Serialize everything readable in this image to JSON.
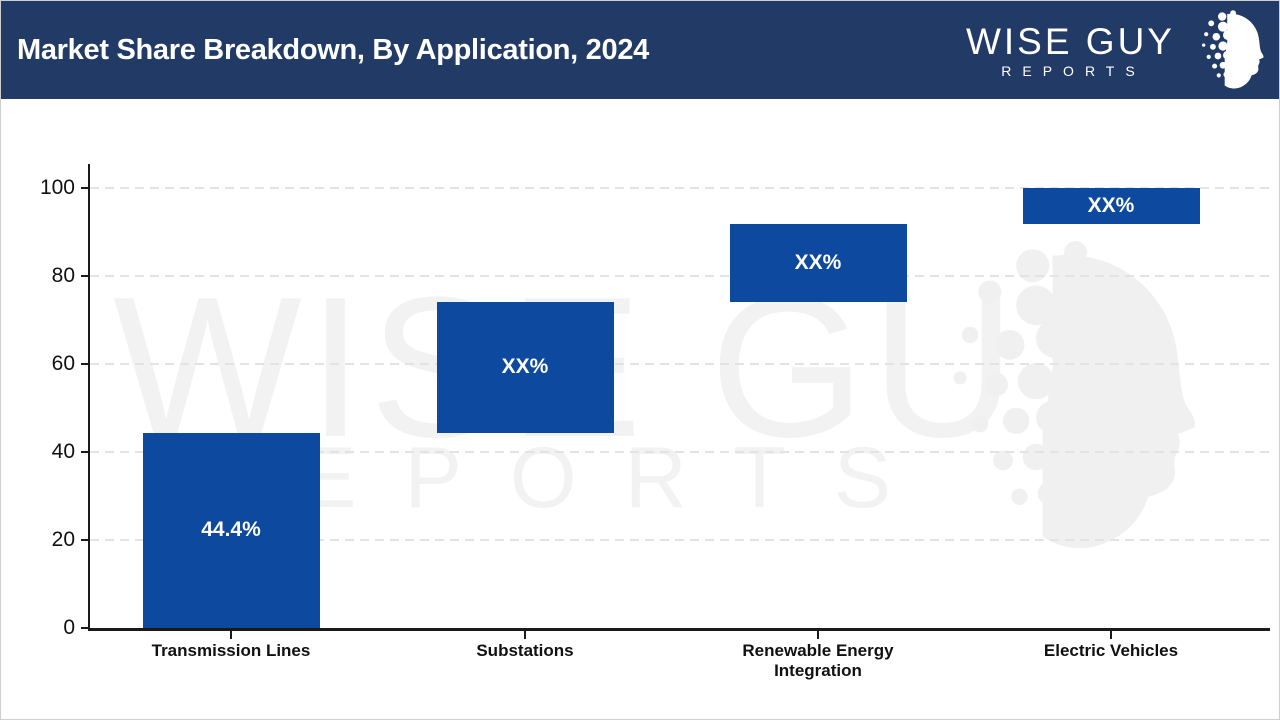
{
  "header": {
    "title": "Market Share Breakdown, By Application, 2024",
    "bg_color": "#213A66",
    "logo": {
      "line1": "WISE GUY",
      "line2": "REPORTS"
    }
  },
  "watermark": {
    "line1": "WISE GUY",
    "line2": "REPORTS"
  },
  "chart_data": {
    "type": "bar",
    "subtype": "waterfall",
    "title": "Market Share Breakdown, By Application, 2024",
    "categories": [
      "Transmission Lines",
      "Substations",
      "Renewable Energy Integration",
      "Electric Vehicles"
    ],
    "bars": [
      {
        "category": "Transmission Lines",
        "label": "44.4%",
        "start": 0,
        "end": 44.4
      },
      {
        "category": "Substations",
        "label": "XX%",
        "start": 44.4,
        "end": 74.1
      },
      {
        "category": "Renewable Energy Integration",
        "label": "XX%",
        "start": 74.1,
        "end": 91.8
      },
      {
        "category": "Electric Vehicles",
        "label": "XX%",
        "start": 91.8,
        "end": 100
      }
    ],
    "y_ticks": [
      0,
      20,
      40,
      60,
      80,
      100
    ],
    "ylim": [
      0,
      105
    ],
    "xlabel": "",
    "ylabel": "",
    "legend": null,
    "grid": "horizontal-dashed",
    "bar_color": "#0D4A9F",
    "grid_color": "#e3e3e3",
    "axis_color": "#1a1a1a",
    "label_color": "#ffffff"
  }
}
